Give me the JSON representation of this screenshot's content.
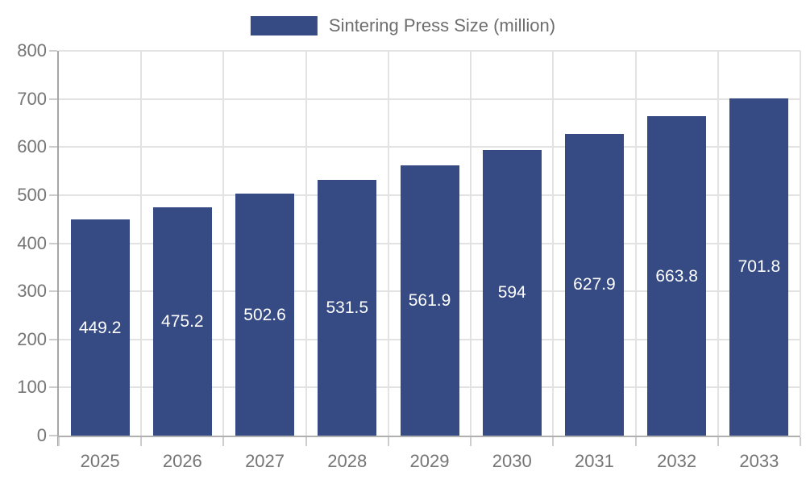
{
  "legend": {
    "label": "Sintering Press Size (million)"
  },
  "colors": {
    "bar": "#364a84",
    "grid": "#e2e2e2",
    "spine_left": "#a6a6a6",
    "spine_bottom": "#b0b0b0",
    "tick": "#cccccc",
    "axis_text": "#757575",
    "legend_text": "#6e6e6e",
    "value_text": "#ffffff"
  },
  "chart_data": {
    "type": "bar",
    "title": "Sintering Press Size (million)",
    "categories": [
      "2025",
      "2026",
      "2027",
      "2028",
      "2029",
      "2030",
      "2031",
      "2032",
      "2033"
    ],
    "values": [
      449.2,
      475.2,
      502.6,
      531.5,
      561.9,
      594,
      627.9,
      663.8,
      701.8
    ],
    "value_labels": [
      "449.2",
      "475.2",
      "502.6",
      "531.5",
      "561.9",
      "594",
      "627.9",
      "663.8",
      "701.8"
    ],
    "series_name": "Sintering Press Size (million)",
    "xlabel": "",
    "ylabel": "",
    "ylim": [
      0,
      800
    ],
    "yticks": [
      0,
      100,
      200,
      300,
      400,
      500,
      600,
      700,
      800
    ],
    "grid": true,
    "legend_position": "top-center",
    "value_label_position": "center-of-bar"
  }
}
